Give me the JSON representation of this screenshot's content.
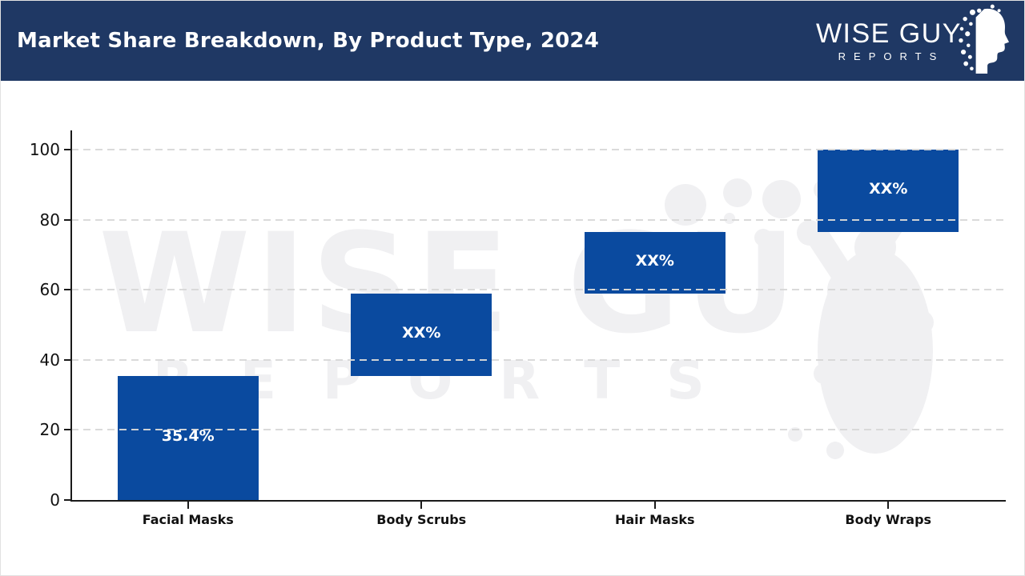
{
  "header": {
    "title": "Market Share Breakdown, By Product Type, 2024",
    "background_color": "#1f3864",
    "logo": {
      "wordmark": "WISE GUY",
      "subtext": "REPORTS",
      "icon": "dotted-head-profile"
    }
  },
  "watermark": {
    "line1": "WISE GUY",
    "line2": "REPORTS",
    "color": "#f0f0f2"
  },
  "chart_data": {
    "type": "bar",
    "variant": "waterfall",
    "title": "Market Share Breakdown, By Product Type, 2024",
    "categories": [
      "Facial Masks",
      "Body Scrubs",
      "Hair Masks",
      "Body Wraps"
    ],
    "segments": [
      {
        "category": "Facial Masks",
        "start": 0,
        "end": 35.4,
        "label": "35.4%"
      },
      {
        "category": "Body Scrubs",
        "start": 35.4,
        "end": 59,
        "label": "XX%"
      },
      {
        "category": "Hair Masks",
        "start": 59,
        "end": 76.5,
        "label": "XX%"
      },
      {
        "category": "Body Wraps",
        "start": 76.5,
        "end": 100,
        "label": "XX%"
      }
    ],
    "ylim": [
      0,
      100
    ],
    "yticks": [
      0,
      20,
      40,
      60,
      80,
      100
    ],
    "xlabel": "",
    "ylabel": "",
    "legend": false,
    "grid": "horizontal-dashed",
    "grid_color": "#d8d8d8",
    "bar_color": "#0a4a9f",
    "bar_label_color": "#ffffff",
    "axis_color": "#1a1a1a"
  }
}
